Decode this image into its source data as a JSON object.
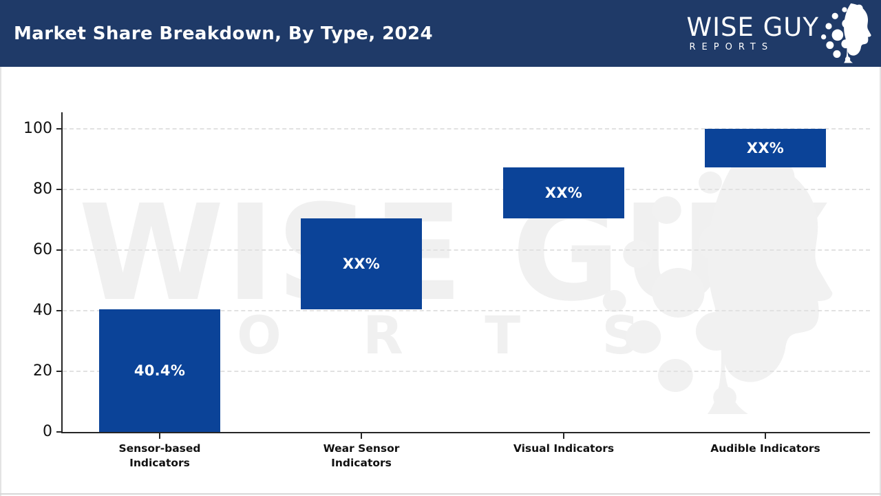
{
  "header": {
    "title": "Market Share Breakdown, By Type, 2024",
    "bg_color": "#1F3A68",
    "logo": {
      "line1": "WISE GUY",
      "line2": "REPORTS"
    }
  },
  "watermark": {
    "line1": "WISE GUY",
    "line2": "P O R T S"
  },
  "chart_data": {
    "type": "bar",
    "variant": "stacked-waterfall",
    "title": "Market Share Breakdown, By Type, 2024",
    "categories": [
      "Sensor-based Indicators",
      "Wear Sensor Indicators",
      "Visual Indicators",
      "Audible Indicators"
    ],
    "bars": [
      {
        "label": "40.4%",
        "start": 0,
        "end": 40.4
      },
      {
        "label": "XX%",
        "start": 40.4,
        "end": 70.4
      },
      {
        "label": "XX%",
        "start": 70.4,
        "end": 87.3
      },
      {
        "label": "XX%",
        "start": 87.3,
        "end": 100
      }
    ],
    "values": [
      40.4,
      30.0,
      16.9,
      12.7
    ],
    "ylim": [
      0,
      105
    ],
    "yticks": [
      0,
      20,
      40,
      60,
      80,
      100
    ],
    "grid": "horizontal-dashed",
    "legend": "none",
    "bar_color": "#0B4398",
    "bar_label_color": "#ffffff"
  }
}
